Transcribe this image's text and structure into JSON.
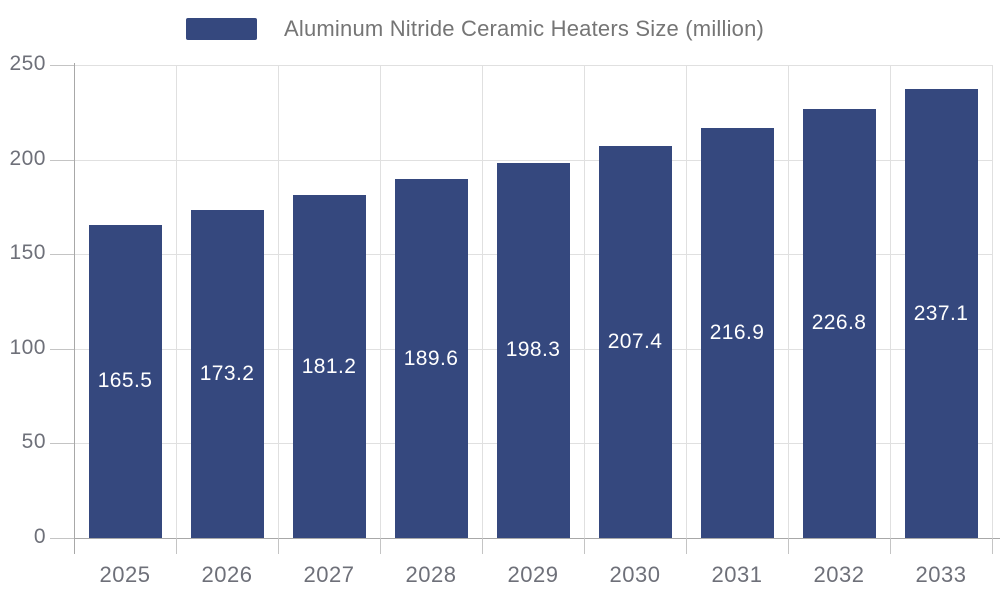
{
  "chart_data": {
    "type": "bar",
    "title": "Aluminum Nitride Ceramic Heaters Size (million)",
    "legend_label": "Aluminum Nitride Ceramic Heaters Size (million)",
    "legend_position": "top-center",
    "categories": [
      "2025",
      "2026",
      "2027",
      "2028",
      "2029",
      "2030",
      "2031",
      "2032",
      "2033"
    ],
    "values": [
      165.5,
      173.2,
      181.2,
      189.6,
      198.3,
      207.4,
      216.9,
      226.8,
      237.1
    ],
    "value_labels": [
      "165.5",
      "173.2",
      "181.2",
      "189.6",
      "198.3",
      "207.4",
      "216.9",
      "226.8",
      "237.1"
    ],
    "xlabel": "",
    "ylabel": "",
    "ylim": [
      0,
      250
    ],
    "yticks": [
      0,
      50,
      100,
      150,
      200,
      250
    ],
    "grid": true,
    "colors": {
      "bar": "#35487e",
      "grid_line": "#e0e0e0",
      "axis_line": "#a8a8a8",
      "tick": "#c4c4c4",
      "axis_text": "#6e7079",
      "legend_text": "#757575",
      "value_text": "#ffffff",
      "background": "#ffffff"
    }
  }
}
